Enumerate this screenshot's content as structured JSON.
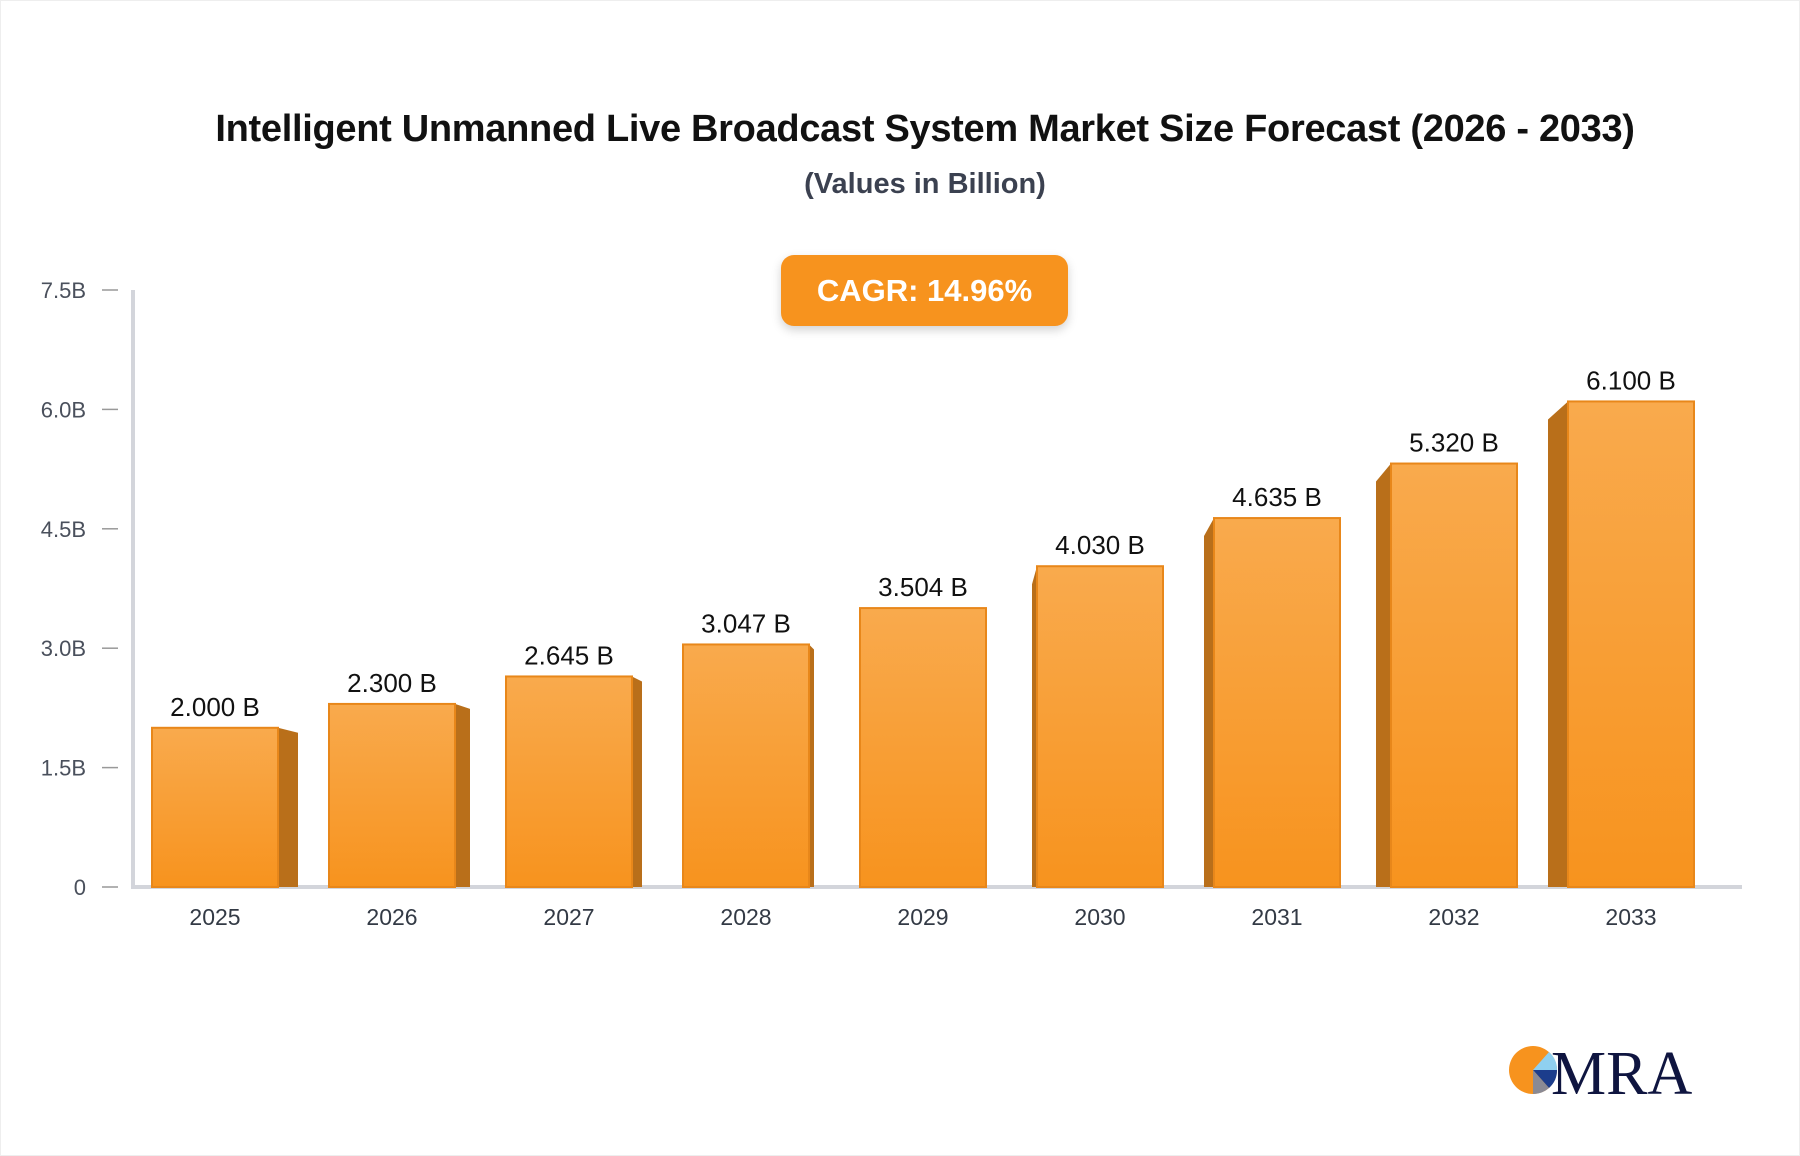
{
  "chart_data": {
    "type": "bar",
    "title": "Intelligent Unmanned Live Broadcast System Market Size Forecast (2026 - 2033)",
    "subtitle": "(Values in Billion)",
    "annotation": "CAGR: 14.96%",
    "categories": [
      "2025",
      "2026",
      "2027",
      "2028",
      "2029",
      "2030",
      "2031",
      "2032",
      "2033"
    ],
    "values": [
      2.0,
      2.3,
      2.645,
      3.047,
      3.504,
      4.03,
      4.635,
      5.32,
      6.1
    ],
    "value_labels": [
      "2.000 B",
      "2.300 B",
      "2.645 B",
      "3.047 B",
      "3.504 B",
      "4.030 B",
      "4.635 B",
      "5.320 B",
      "6.100 B"
    ],
    "yticks": [
      0,
      1.5,
      3.0,
      4.5,
      6.0,
      7.5
    ],
    "ytick_labels": [
      "0",
      "1.5B",
      "3.0B",
      "4.5B",
      "6.0B",
      "7.5B"
    ],
    "ylim": [
      0,
      7.5
    ],
    "xlabel": "",
    "ylabel": "",
    "grid": false,
    "colors": {
      "bar_top": "#f9aa4d",
      "bar_bottom": "#f7931e",
      "bar_side": "#b96f1a",
      "bar_edge": "#e8871a",
      "axis": "#d3d5db",
      "cagr_bg": "#f7931e"
    }
  },
  "logo": {
    "text": "MRA",
    "colors": {
      "orange": "#f7931e",
      "navy": "#0f1540",
      "light_blue": "#8fd0f0",
      "blue": "#1c3d8c",
      "gray": "#8a8a94"
    }
  }
}
